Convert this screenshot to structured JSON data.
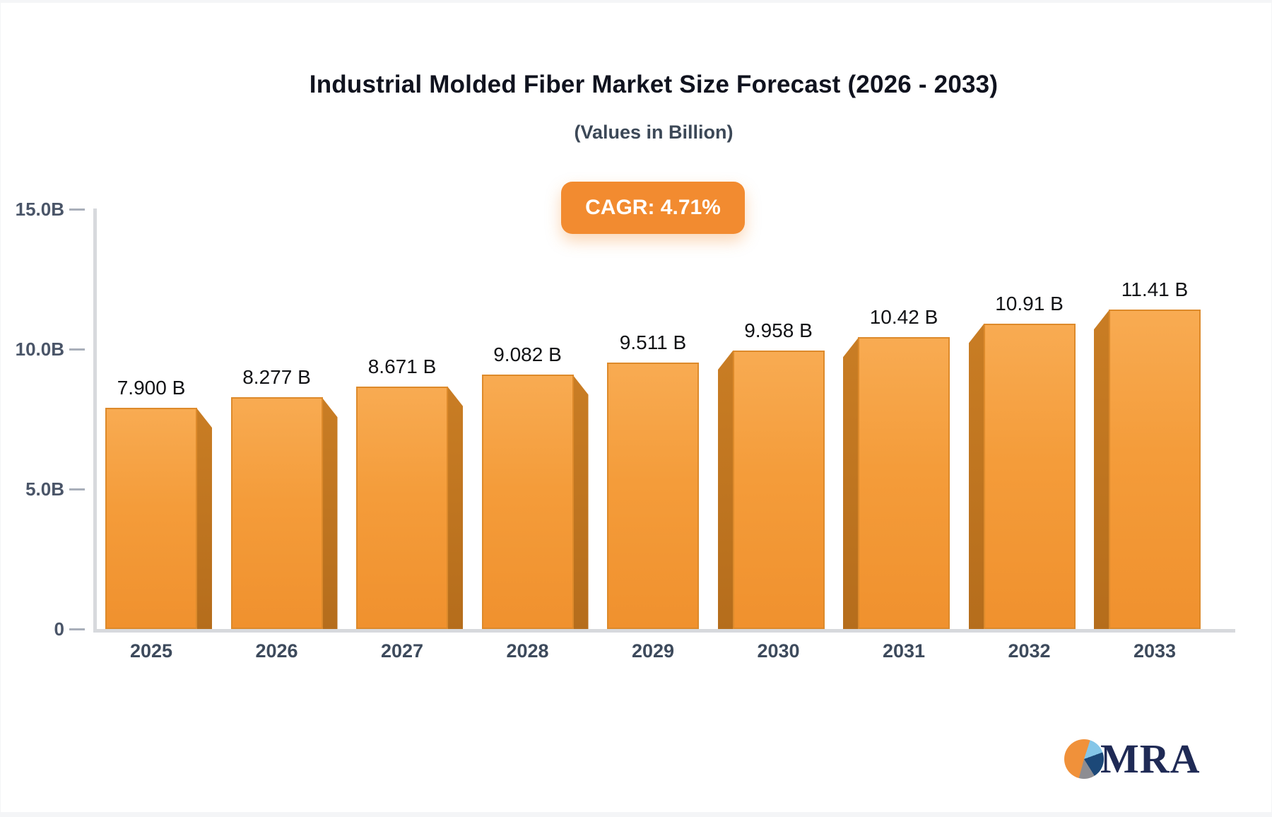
{
  "title": "Industrial Molded Fiber Market Size Forecast (2026 - 2033)",
  "subtitle": "(Values in Billion)",
  "badge": {
    "label": "CAGR: 4.71%",
    "color": "#F28B30"
  },
  "logo": {
    "text": "MRA"
  },
  "colors": {
    "bar_face": "#F49C3A",
    "bar_side": "#C0751F",
    "axis_line": "#D7D9DD",
    "tick": "#A9AFBA",
    "axis_label": "#4A5568",
    "value_label": "#121316",
    "badge_bg": "#F28B30",
    "logo_navy": "#1F2A55",
    "logo_lightblue": "#85C6E8",
    "logo_darkblue": "#1C4878",
    "logo_gray": "#8D8D92",
    "logo_orange": "#F0913A"
  },
  "chart_data": {
    "type": "bar",
    "title": "Industrial Molded Fiber Market Size Forecast (2026 - 2033)",
    "subtitle": "(Values in Billion)",
    "cagr_label": "CAGR: 4.71%",
    "categories": [
      "2025",
      "2026",
      "2027",
      "2028",
      "2029",
      "2030",
      "2031",
      "2032",
      "2033"
    ],
    "values": [
      7.9,
      8.277,
      8.671,
      9.082,
      9.511,
      9.958,
      10.42,
      10.91,
      11.41
    ],
    "value_labels": [
      "7.900 B",
      "8.277 B",
      "8.671 B",
      "9.082 B",
      "9.511 B",
      "9.958 B",
      "10.42 B",
      "10.91 B",
      "11.41 B"
    ],
    "side_direction": [
      "right",
      "right",
      "right",
      "right",
      "none",
      "left",
      "left",
      "left",
      "left"
    ],
    "xlabel": "",
    "ylabel": "",
    "ylim": [
      0,
      15
    ],
    "yticks": [
      "15.0B",
      "10.0B",
      "5.0B",
      "0"
    ],
    "ytick_values": [
      15,
      10,
      5,
      0
    ],
    "unit": "Billion",
    "grid": false,
    "legend": "none",
    "bar_style": "3d-orange"
  }
}
